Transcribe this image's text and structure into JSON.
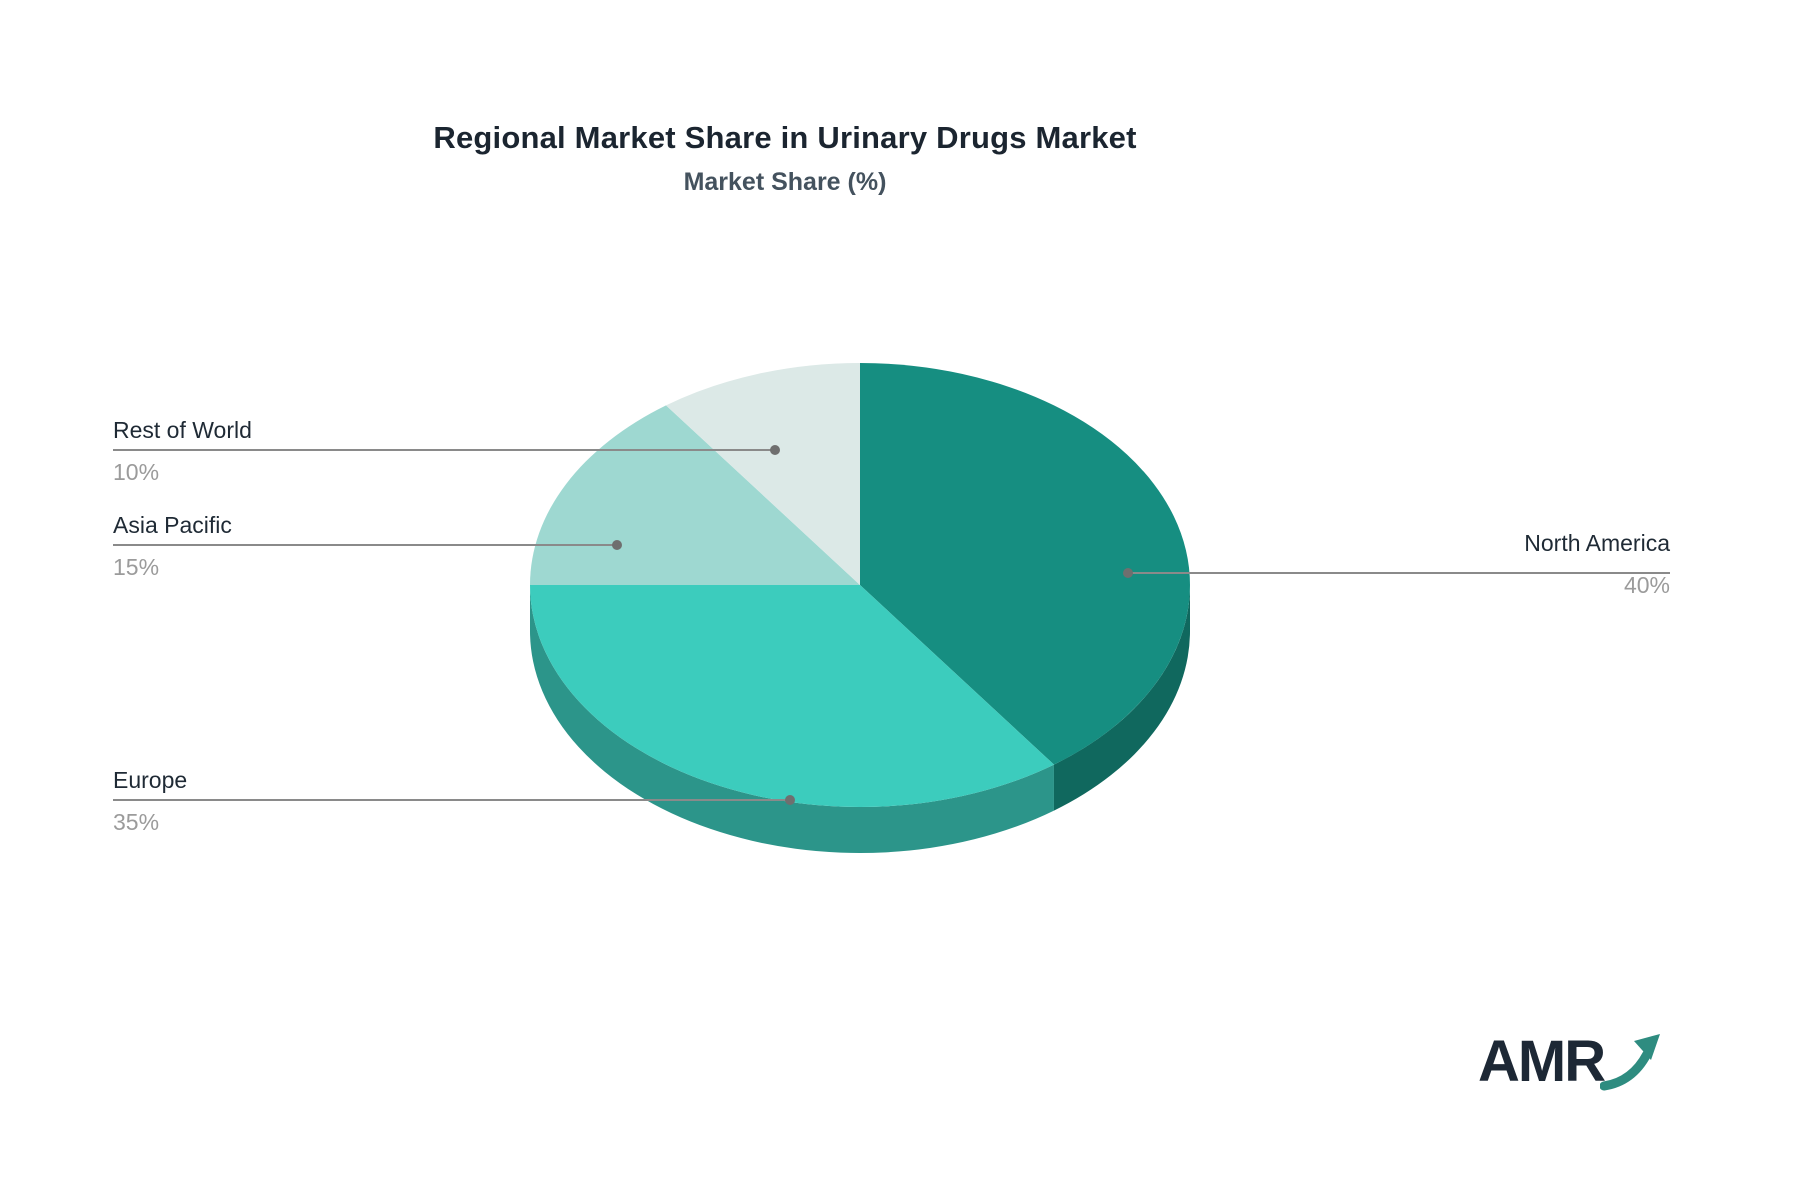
{
  "header": {
    "title": "Regional Market Share in Urinary Drugs Market",
    "subtitle": "Market Share (%)"
  },
  "chart_data": {
    "type": "pie",
    "style": "3d",
    "title": "Regional Market Share in Urinary Drugs Market",
    "subtitle": "Market Share (%)",
    "unit": "%",
    "direction": "clockwise",
    "start_angle": "12-oclock",
    "slices": [
      {
        "label": "North America",
        "value": 40,
        "pct_label": "40%",
        "color": "#168E81"
      },
      {
        "label": "Europe",
        "value": 35,
        "pct_label": "35%",
        "color": "#3CCCBD"
      },
      {
        "label": "Asia Pacific",
        "value": 15,
        "pct_label": "15%",
        "color": "#9ED8D1"
      },
      {
        "label": "Rest of World",
        "value": 10,
        "pct_label": "10%",
        "color": "#DCE9E7"
      }
    ],
    "legend": "none",
    "callout_line_color": "#8A8A8A",
    "callout_dot_color": "#6F6F6F",
    "label_text_color": "#1F2A35",
    "percent_text_color": "#9B9B9B"
  },
  "logo": {
    "text": "AMR",
    "arrow_icon": "growth-arrow-icon",
    "text_color": "#1D2835",
    "arrow_color": "#2E8C80"
  }
}
